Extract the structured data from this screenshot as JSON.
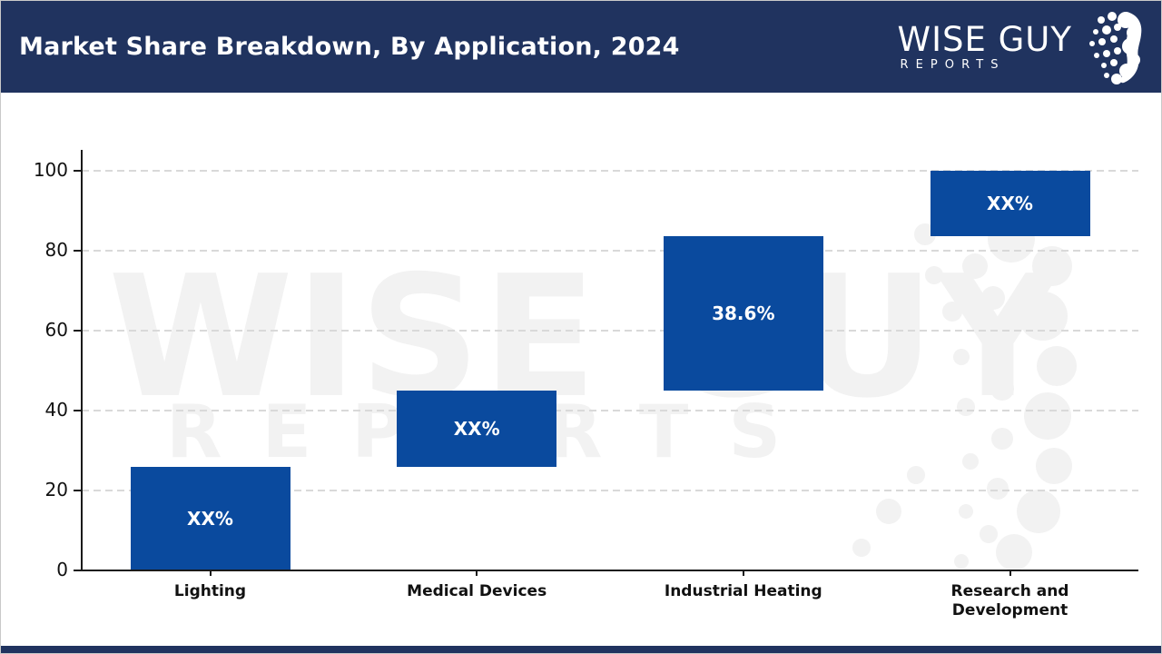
{
  "header": {
    "title": "Market Share Breakdown, By Application, 2024",
    "logo": {
      "line1": "WISE GUY",
      "line2": "REPORTS"
    }
  },
  "watermark": {
    "line1": "WISE GUY",
    "line2": "REPORTS"
  },
  "colors": {
    "header_bg": "#20335f",
    "footer_bg": "#20335f",
    "bar_fill": "#0a4a9e",
    "bar_label": "#ffffff",
    "gridline": "#d9d9d9",
    "axis": "#1a1a1a",
    "watermark": "#f2f2f2"
  },
  "chart_data": {
    "type": "bar",
    "subtype": "waterfall",
    "title": "Market Share Breakdown, By Application, 2024",
    "xlabel": "",
    "ylabel": "",
    "ylim": [
      0,
      100
    ],
    "yticks": [
      0,
      20,
      40,
      60,
      80,
      100
    ],
    "grid": "horizontal-dashed",
    "legend": "none",
    "categories": [
      "Lighting",
      "Medical Devices",
      "Industrial Heating",
      "Research and Development"
    ],
    "segments": [
      {
        "category": "Lighting",
        "base": 0,
        "top": 26,
        "value_label": "XX%"
      },
      {
        "category": "Medical Devices",
        "base": 26,
        "top": 45,
        "value_label": "XX%"
      },
      {
        "category": "Industrial Heating",
        "base": 45,
        "top": 83.6,
        "value_label": "38.6%"
      },
      {
        "category": "Research and Development",
        "base": 83.6,
        "top": 100,
        "value_label": "XX%"
      }
    ]
  }
}
